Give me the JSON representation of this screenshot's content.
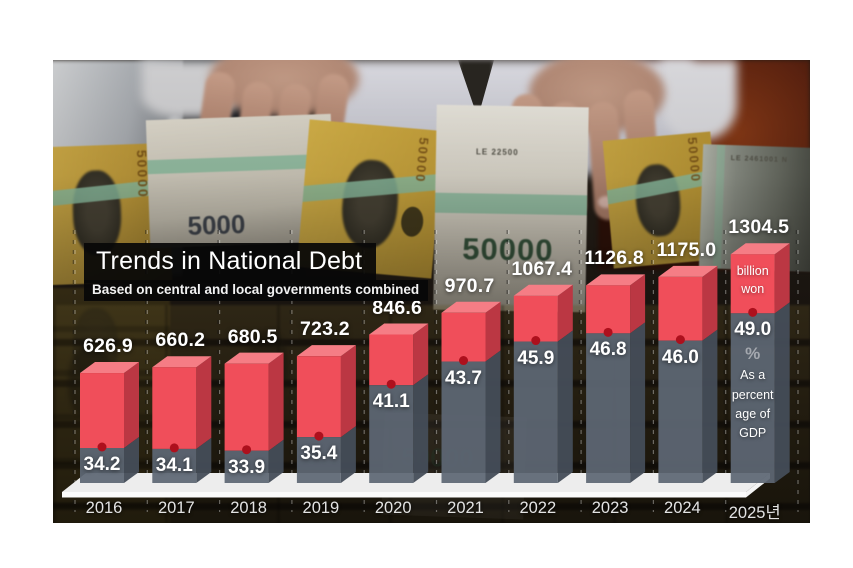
{
  "chart_data": {
    "type": "bar",
    "title": "Trends in National Debt",
    "subtitle": "Based on central and local governments combined",
    "categories": [
      "2016",
      "2017",
      "2018",
      "2019",
      "2020",
      "2021",
      "2022",
      "2023",
      "2024",
      "2025년"
    ],
    "series": [
      {
        "name": "National debt",
        "unit": "billion won",
        "color": "#f04e5a",
        "values": [
          626.9,
          660.2,
          680.5,
          723.2,
          846.6,
          970.7,
          1067.4,
          1126.8,
          1175.0,
          1304.5
        ]
      },
      {
        "name": "As a percentage of GDP",
        "unit": "%",
        "color": "#5e6774",
        "values": [
          34.2,
          34.1,
          33.9,
          35.4,
          41.1,
          43.7,
          45.9,
          46.8,
          46.0,
          49.0
        ]
      }
    ],
    "annotations": {
      "unit_badge": "billion won",
      "pct_symbol": "%",
      "pct_caption": "As a percent age of GDP"
    },
    "value_label_decimals": 1,
    "legend_position": "inside-last-bar",
    "grid": "dashed-vertical-separators"
  },
  "colors": {
    "red_front": "#f04e5a",
    "red_top": "#f57d85",
    "red_side": "#bb3743",
    "gray_front": "#5e6774",
    "gray_side": "#454d59",
    "dot": "#ad101d",
    "floor_top": "#ededed",
    "floor_front": "#fbfbfb",
    "floor_cap": "#f4f4f4"
  },
  "photo": {
    "note_texts": {
      "big_green": "50000",
      "pale_dark": "5000",
      "vertical_digits": "50000",
      "serial_1": "LE 22500",
      "serial_2": "LE 2461001 N"
    }
  }
}
